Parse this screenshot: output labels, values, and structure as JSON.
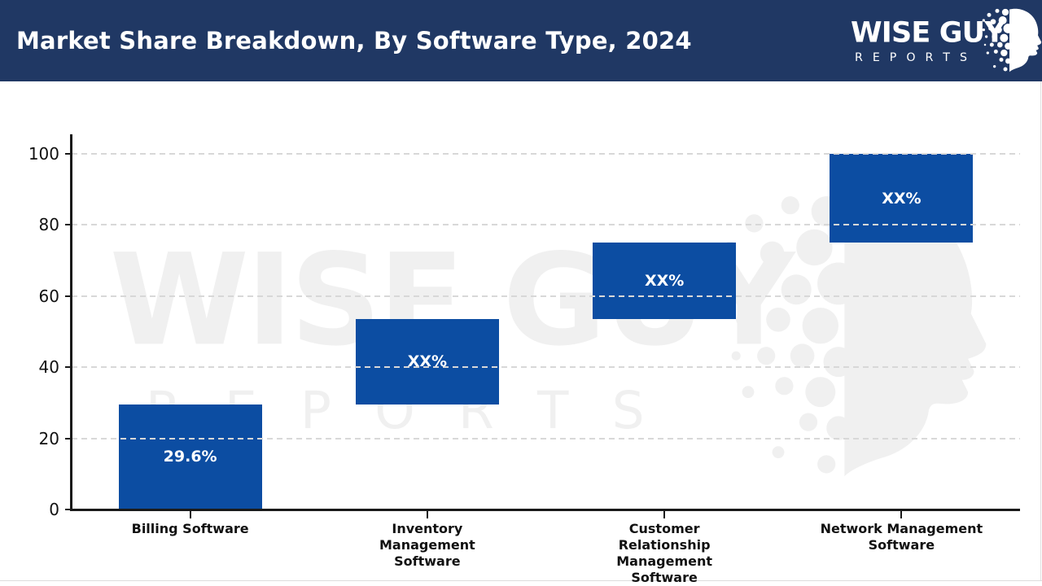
{
  "header": {
    "title": "Market Share Breakdown, By Software Type, 2024",
    "background": "#203864",
    "logo": {
      "brand": "WISE GUY",
      "sub": "R E P O R T S"
    }
  },
  "chart_data": {
    "type": "bar",
    "subtype": "waterfall",
    "title": "Market Share Breakdown, By Software Type, 2024",
    "categories": [
      "Billing Software",
      "Inventory\nManagement\nSoftware",
      "Customer\nRelationship\nManagement\nSoftware",
      "Network Management\nSoftware"
    ],
    "segments": [
      {
        "category": "Billing Software",
        "label": "29.6%",
        "start": 0,
        "end": 29.6
      },
      {
        "category": "Inventory Management Software",
        "label": "XX%",
        "start": 29.6,
        "end": 53.5
      },
      {
        "category": "Customer Relationship Management Software",
        "label": "XX%",
        "start": 53.5,
        "end": 75
      },
      {
        "category": "Network Management Software",
        "label": "XX%",
        "start": 75,
        "end": 100
      }
    ],
    "yticks": [
      0,
      20,
      40,
      60,
      80,
      100
    ],
    "ylim": [
      0,
      100
    ],
    "grid": true,
    "legend": false,
    "colors": {
      "bar": "#0c4da2",
      "bar_label": "#ffffff",
      "gridline": "#d8d8d8",
      "axis": "#1a1a1a",
      "tick_text": "#111111",
      "watermark": "#f0f0f0"
    }
  }
}
